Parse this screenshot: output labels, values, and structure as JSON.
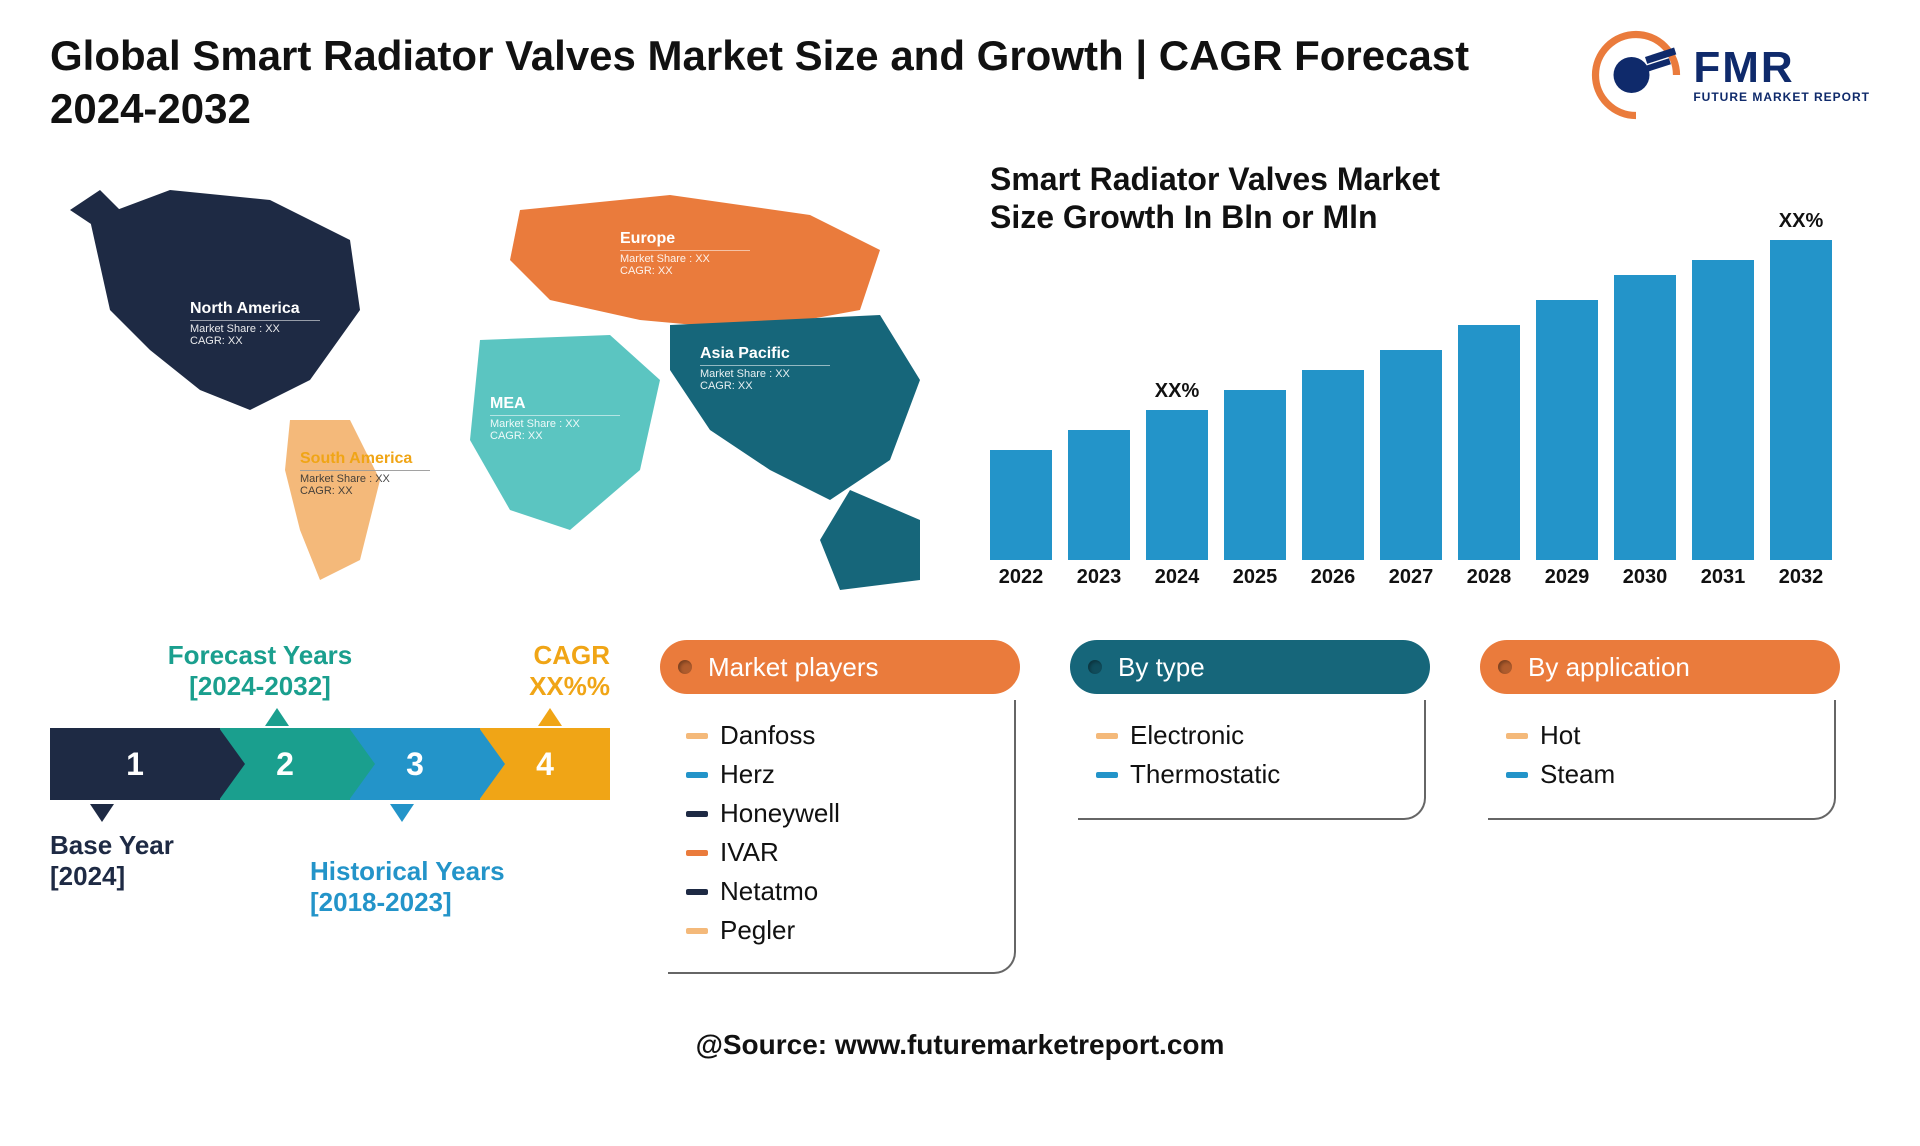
{
  "title": "Global Smart Radiator Valves Market Size and Growth | CAGR Forecast 2024-2032",
  "logo": {
    "fmr": "FMR",
    "sub": "FUTURE MARKET REPORT"
  },
  "map": {
    "regions": [
      {
        "id": "north-america",
        "name": "North America",
        "share": "Market Share : XX",
        "cagr": "CAGR: XX",
        "color": "#1e2a44"
      },
      {
        "id": "south-america",
        "name": "South America",
        "share": "Market Share : XX",
        "cagr": "CAGR: XX",
        "color": "#f4b97a"
      },
      {
        "id": "europe",
        "name": "Europe",
        "share": "Market Share : XX",
        "cagr": "CAGR: XX",
        "color": "#ea7b3c"
      },
      {
        "id": "mea",
        "name": "MEA",
        "share": "Market Share : XX",
        "cagr": "CAGR: XX",
        "color": "#5bc5c1"
      },
      {
        "id": "asia-pacific",
        "name": "Asia Pacific",
        "share": "Market Share : XX",
        "cagr": "CAGR: XX",
        "color": "#16667a"
      }
    ]
  },
  "chart": {
    "title": "Smart Radiator Valves Market Size Growth In Bln or Mln",
    "type": "bar",
    "bar_color": "#2394c9",
    "years": [
      "2022",
      "2023",
      "2024",
      "2025",
      "2026",
      "2027",
      "2028",
      "2029",
      "2030",
      "2031",
      "2032"
    ],
    "values": [
      110,
      130,
      150,
      170,
      190,
      210,
      235,
      260,
      285,
      300,
      320
    ],
    "annotations": [
      {
        "index": 2,
        "text": "XX%"
      },
      {
        "index": 10,
        "text": "XX%"
      }
    ],
    "label_fontsize": 20
  },
  "timeline": {
    "forecast_label": "Forecast Years",
    "forecast_range": "[2024-2032]",
    "cagr_label": "CAGR",
    "cagr_value": "XX%%",
    "base_label": "Base Year",
    "base_range": "[2024]",
    "hist_label": "Historical Years",
    "hist_range": "[2018-2023]",
    "segments": [
      "1",
      "2",
      "3",
      "4"
    ],
    "colors": {
      "navy": "#1e2a44",
      "teal": "#1a9f8e",
      "blue": "#2394c9",
      "yellow": "#f0a516"
    }
  },
  "categories": {
    "players": {
      "title": "Market players",
      "header_color": "#ea7b3c",
      "items": [
        "Danfoss",
        "Herz",
        "Honeywell",
        "IVAR",
        "Netatmo",
        "Pegler"
      ],
      "tick_colors": [
        "#f4b97a",
        "#2394c9",
        "#1e2a44",
        "#ea7b3c",
        "#1e2a44",
        "#f4b97a"
      ]
    },
    "type": {
      "title": "By type",
      "header_color": "#16667a",
      "items": [
        "Electronic",
        "Thermostatic"
      ],
      "tick_colors": [
        "#f4b97a",
        "#2394c9"
      ]
    },
    "application": {
      "title": "By application",
      "header_color": "#ea7b3c",
      "items": [
        "Hot",
        "Steam"
      ],
      "tick_colors": [
        "#f4b97a",
        "#2394c9"
      ]
    }
  },
  "source": "@Source: www.futuremarketreport.com"
}
